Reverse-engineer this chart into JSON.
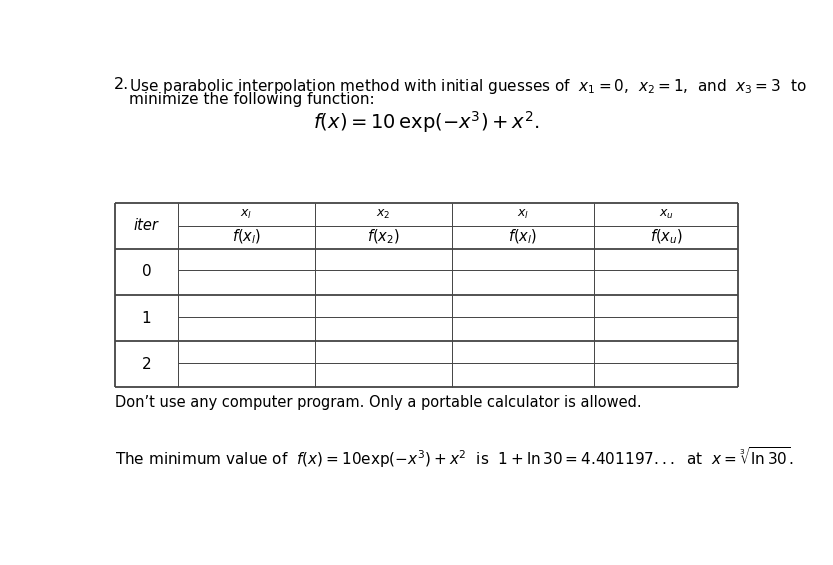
{
  "background_color": "#ffffff",
  "table_line_color": "#444444",
  "text_color": "#000000",
  "fig_width": 8.33,
  "fig_height": 5.65,
  "note": "Don’t use any computer program. Only a portable calculator is allowed."
}
